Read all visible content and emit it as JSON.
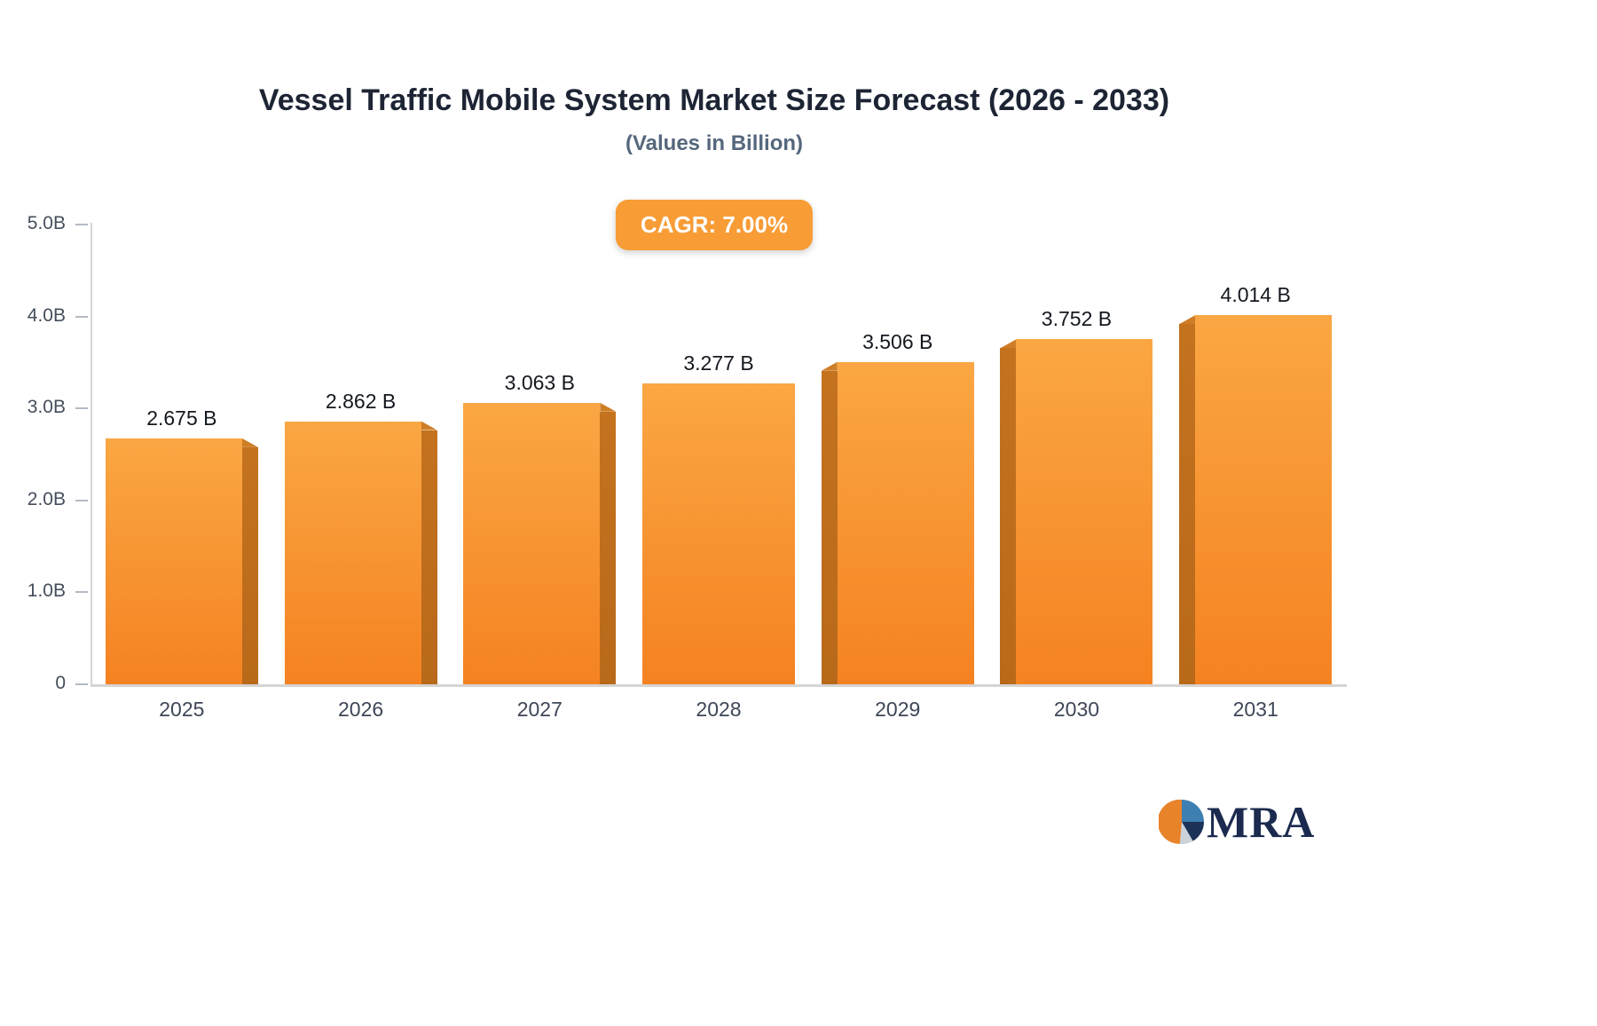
{
  "chart_data": {
    "type": "bar",
    "title": "Vessel Traffic Mobile System Market Size Forecast (2026 - 2033)",
    "subtitle": "(Values in Billion)",
    "badge": "CAGR: 7.00%",
    "categories": [
      "2025",
      "2026",
      "2027",
      "2028",
      "2029",
      "2030",
      "2031"
    ],
    "values": [
      2.675,
      2.862,
      3.063,
      3.277,
      3.506,
      3.752,
      4.014
    ],
    "value_labels": [
      "2.675 B",
      "2.862 B",
      "3.063 B",
      "3.277 B",
      "3.506 B",
      "3.752 B",
      "4.014 B"
    ],
    "xlabel": "",
    "ylabel": "",
    "ylim": [
      0,
      5
    ],
    "ytick_values": [
      5,
      4,
      3,
      2,
      1,
      0
    ],
    "ytick_labels": [
      "5.0B",
      "4.0B",
      "3.0B",
      "2.0B",
      "1.0B",
      "0"
    ],
    "grid": false,
    "legend": "none",
    "bar_sides": [
      "right",
      "right",
      "right",
      "none",
      "left",
      "left",
      "left"
    ],
    "colors": {
      "bar_top": "#FAA744",
      "bar_bottom": "#F58221",
      "bar_side": "#C4721E",
      "bar_cap": "#CE7E26",
      "badge_bg": "#F89C35",
      "title": "#1D2434",
      "subtitle": "#55677D",
      "axis": "#D5D5D5",
      "tick_label": "#454E5C",
      "value_label": "#14181F",
      "xlabel": "#3E4757"
    }
  },
  "logo": {
    "text": "MRA"
  }
}
